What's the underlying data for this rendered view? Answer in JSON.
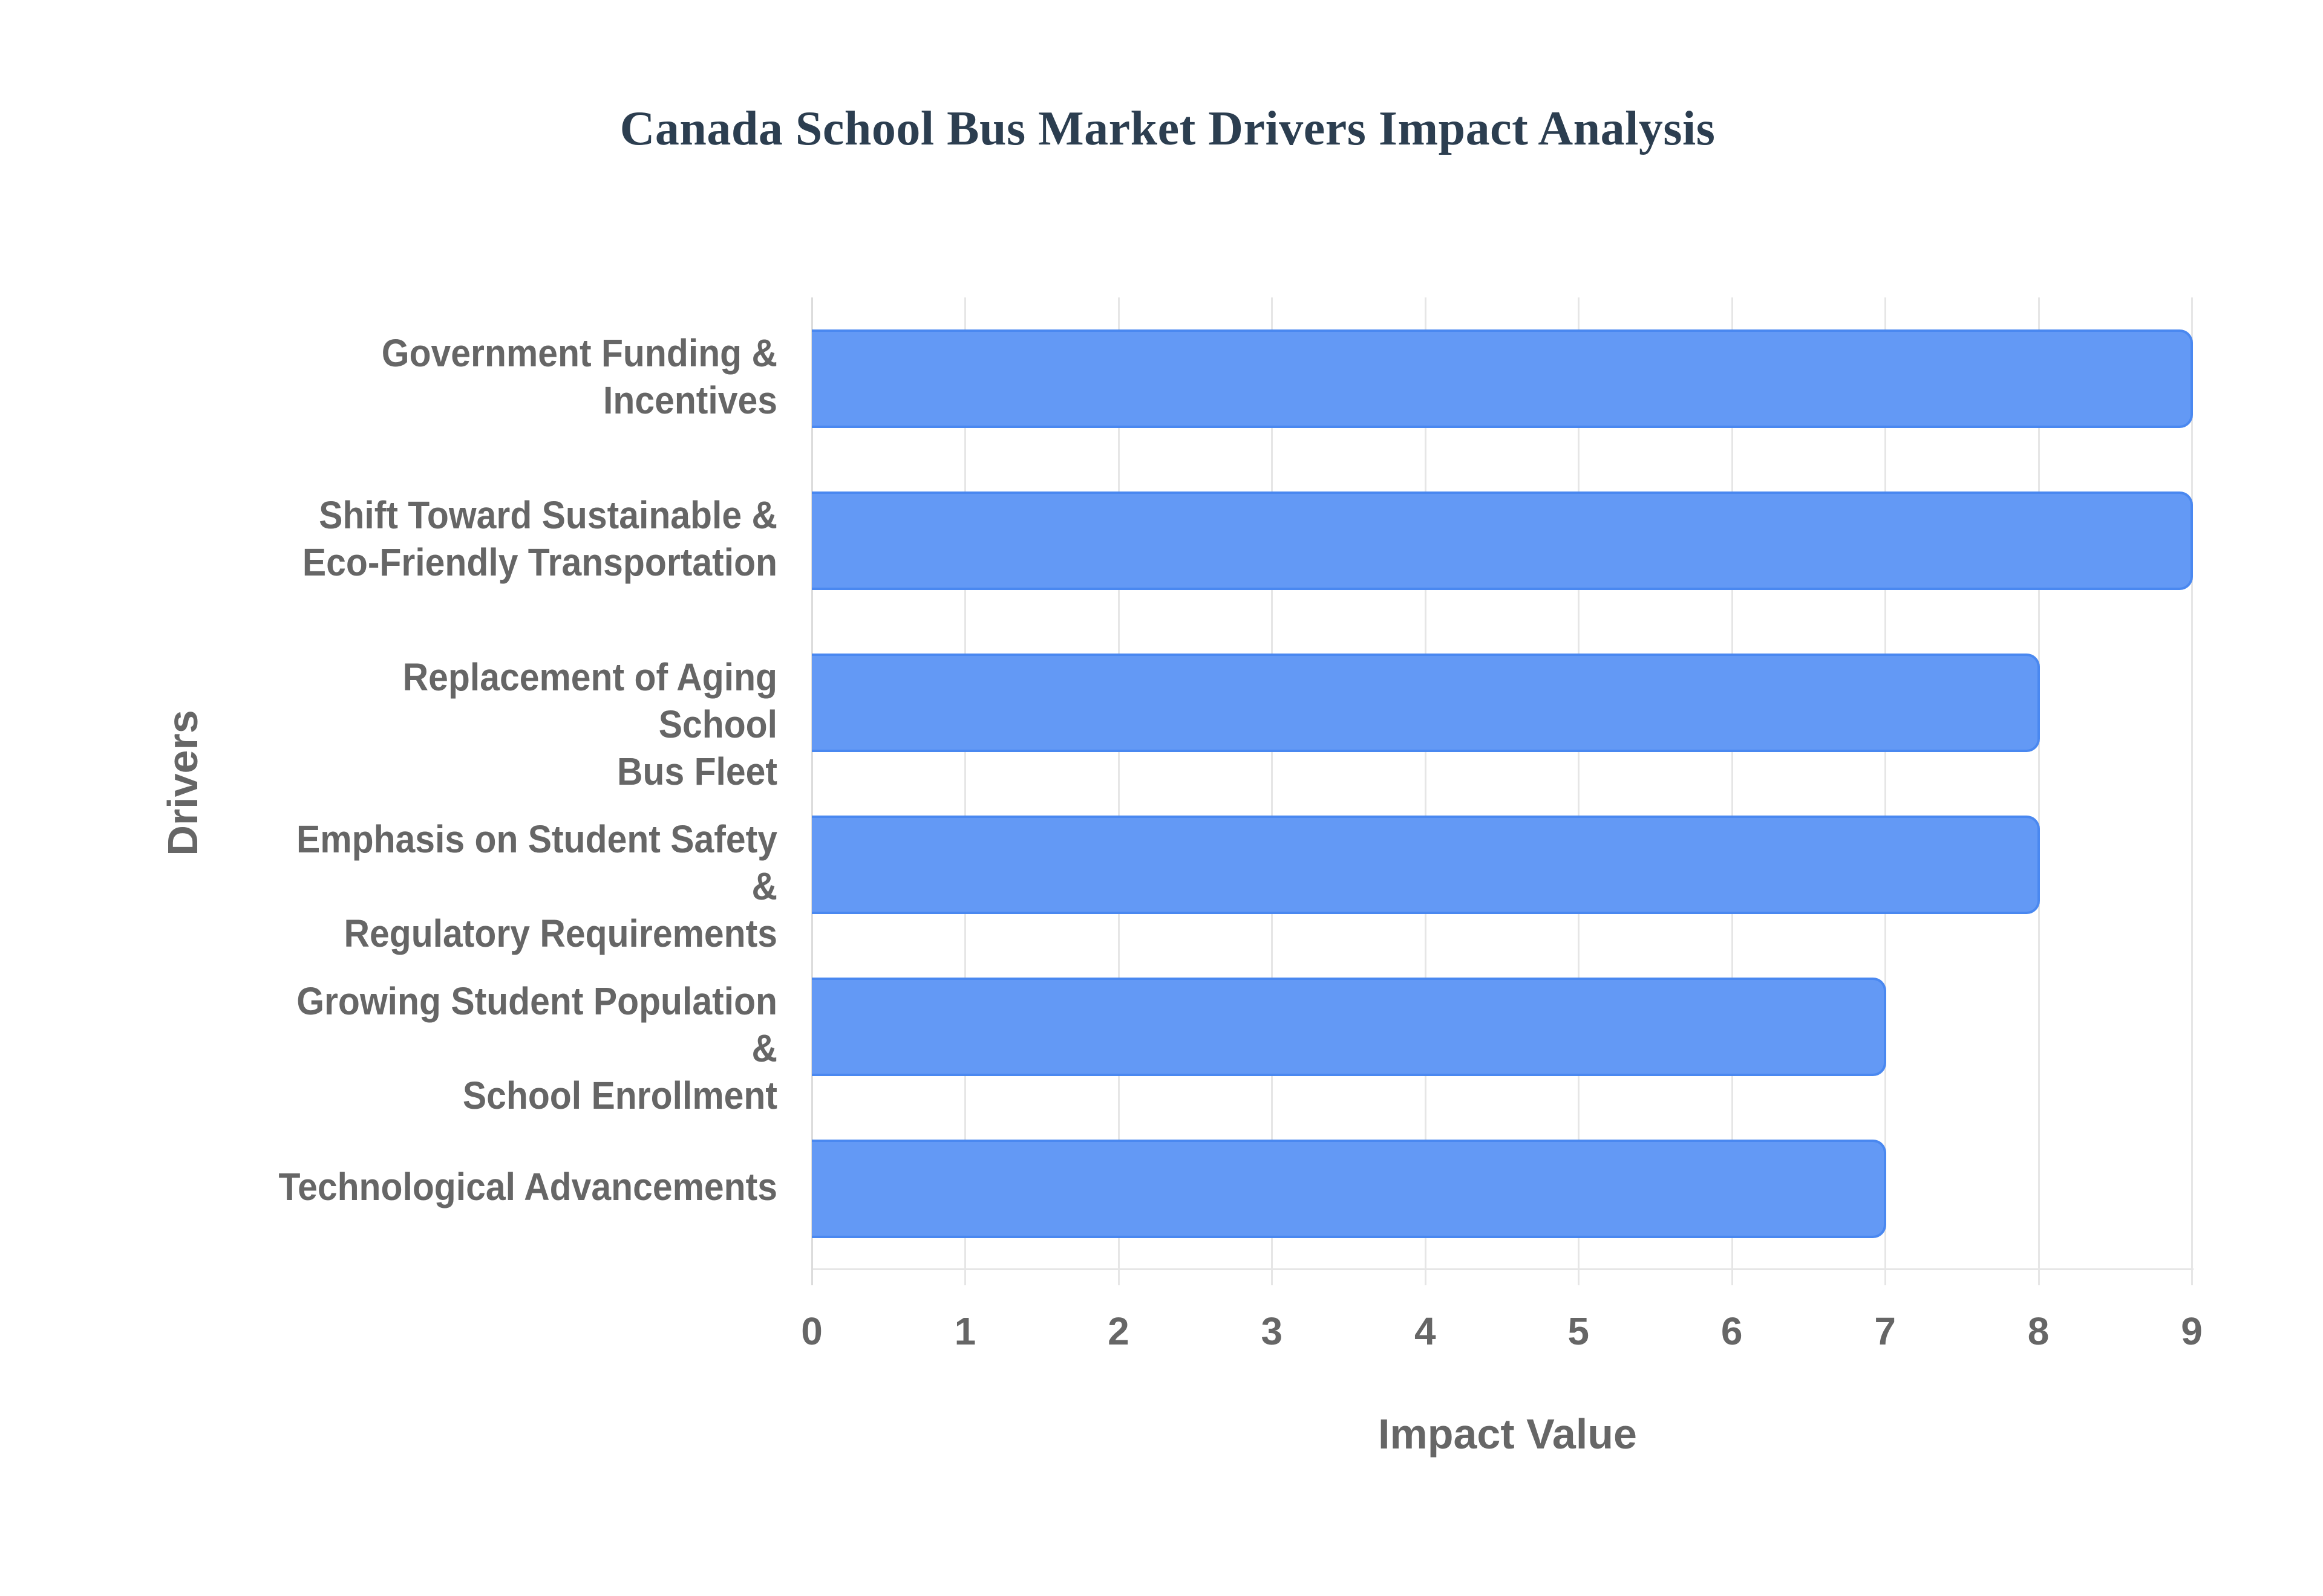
{
  "chart_data": {
    "type": "bar",
    "orientation": "horizontal",
    "title": "Canada School Bus Market Drivers Impact Analysis",
    "xlabel": "Impact Value",
    "ylabel": "Drivers",
    "categories": [
      "Government Funding & Incentives",
      "Shift Toward Sustainable & Eco-Friendly Transportation",
      "Replacement of Aging School Bus Fleet",
      "Emphasis on Student Safety & Regulatory Requirements",
      "Growing Student Population & School Enrollment",
      "Technological Advancements"
    ],
    "category_lines": [
      [
        "Government Funding &",
        "Incentives"
      ],
      [
        "Shift Toward Sustainable &",
        "Eco-Friendly Transportation"
      ],
      [
        "Replacement of Aging School",
        "Bus Fleet"
      ],
      [
        "Emphasis on Student Safety &",
        "Regulatory Requirements"
      ],
      [
        "Growing Student Population &",
        "School Enrollment"
      ],
      [
        "Technological Advancements"
      ]
    ],
    "values": [
      9,
      9,
      8,
      8,
      7,
      7
    ],
    "xlim": [
      0,
      9
    ],
    "xticks": [
      "0",
      "1",
      "2",
      "3",
      "4",
      "5",
      "6",
      "7",
      "8",
      "9"
    ],
    "grid": true,
    "legend": null,
    "colors": {
      "bar_fill": "#6399f5",
      "bar_border": "#4a88f0",
      "title": "#2c3e50",
      "axis_text": "#666666",
      "grid": "#e6e6e6"
    }
  }
}
